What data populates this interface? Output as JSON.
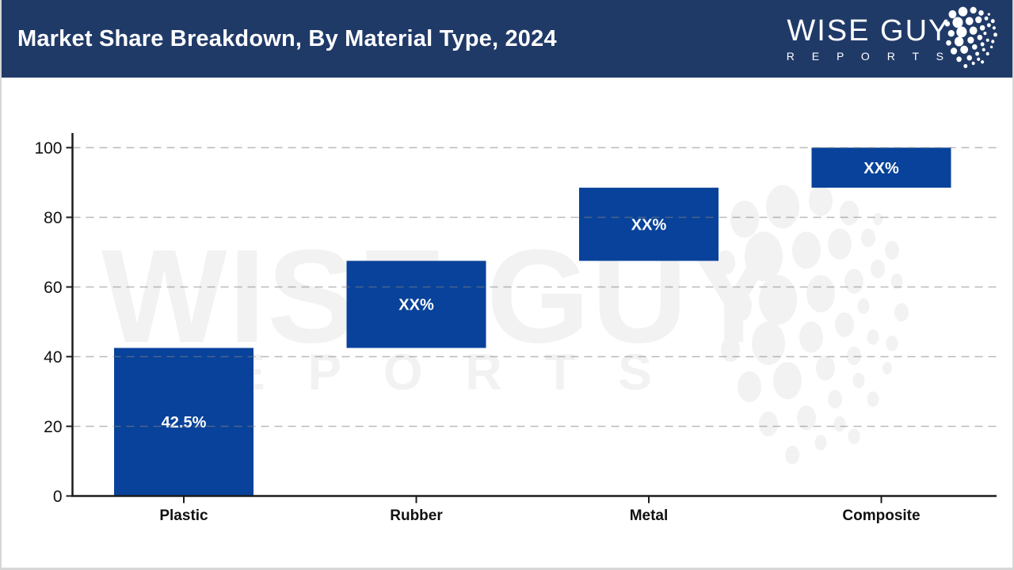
{
  "header": {
    "title": "Market Share Breakdown, By Material Type, 2024",
    "logo": {
      "line1": "WISE GUY",
      "line2": "R E P O R T S"
    }
  },
  "watermark": {
    "line1": "WISE GUY",
    "line2": "R E P O R T S"
  },
  "colors": {
    "header_bg": "#203a68",
    "bar": "#08429a",
    "bar_label": "#ffffff",
    "axis": "#1c1c1c",
    "tick_label": "#111111",
    "grid": "rgba(130,130,130,0.55)",
    "watermark": "#f2f2f2",
    "border": "#d6d6d6",
    "title_text": "#ffffff"
  },
  "chart_data": {
    "type": "bar",
    "subtype": "waterfall",
    "title": "Market Share Breakdown, By Material Type, 2024",
    "categories": [
      "Plastic",
      "Rubber",
      "Metal",
      "Composite"
    ],
    "segments": [
      {
        "category": "Plastic",
        "start": 0,
        "end": 42.5,
        "label": "42.5%"
      },
      {
        "category": "Rubber",
        "start": 42.5,
        "end": 67.5,
        "label": "XX%"
      },
      {
        "category": "Metal",
        "start": 67.5,
        "end": 88.5,
        "label": "XX%"
      },
      {
        "category": "Composite",
        "start": 88.5,
        "end": 100,
        "label": "XX%"
      }
    ],
    "xlabel": "",
    "ylabel": "",
    "ylim": [
      0,
      100
    ],
    "yticks": [
      0,
      20,
      40,
      60,
      80,
      100
    ],
    "grid": "horizontal-dashed",
    "legend": "none"
  }
}
